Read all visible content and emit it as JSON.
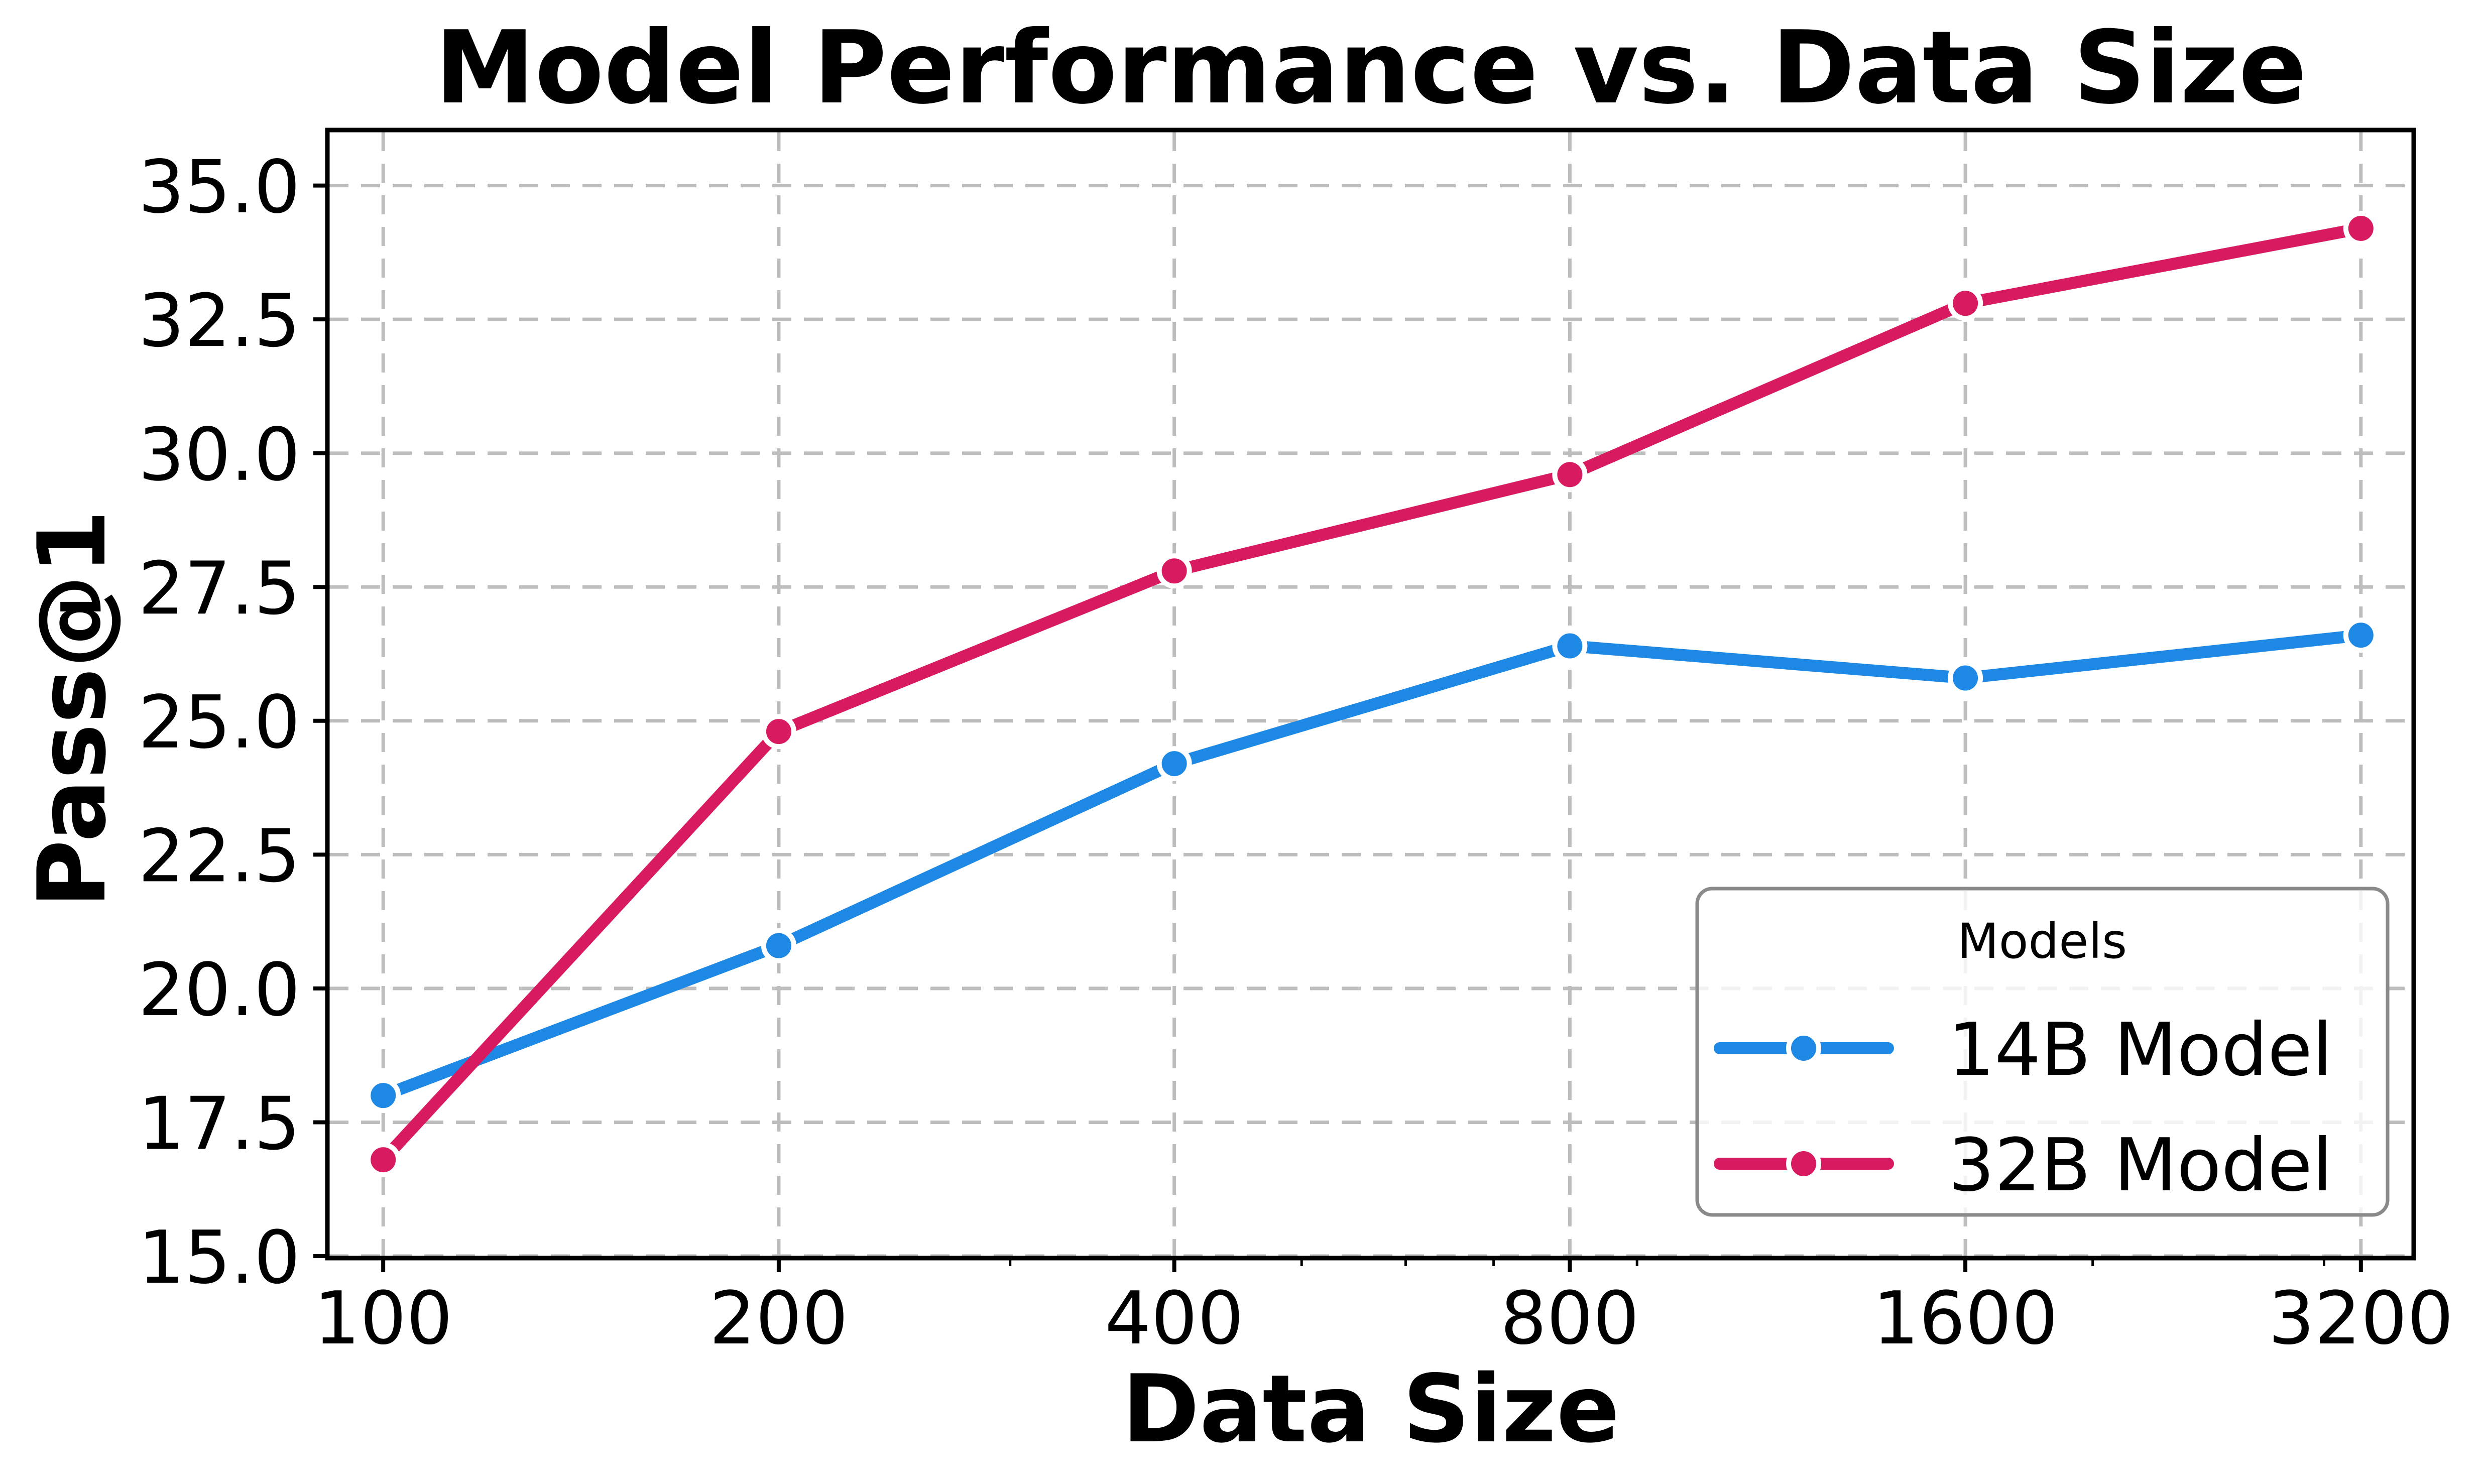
{
  "figure": {
    "background": "#ffffff",
    "text_color": "#000000",
    "grid_color": "#bdbdbd",
    "spine_color": "#000000",
    "legend_border_color": "#8a8a8a",
    "legend_background": "rgba(255,255,255,0.8)"
  },
  "chart_data": {
    "type": "line",
    "title": "Model Performance vs. Data Size",
    "xlabel": "Data Size",
    "ylabel": "Pass@1",
    "x_scale": "log2",
    "x": [
      100,
      200,
      400,
      800,
      1600,
      3200
    ],
    "xtick_labels": [
      "100",
      "200",
      "400",
      "800",
      "1600",
      "3200"
    ],
    "minor_xticks": [
      300,
      500,
      600,
      700,
      900,
      2000,
      3000
    ],
    "xlim": [
      91,
      3498
    ],
    "ylim": [
      15,
      36
    ],
    "yticks": [
      15.0,
      17.5,
      20.0,
      22.5,
      25.0,
      27.5,
      30.0,
      32.5,
      35.0
    ],
    "ytick_labels": [
      "15.0",
      "17.5",
      "20.0",
      "22.5",
      "25.0",
      "27.5",
      "30.0",
      "32.5",
      "35.0"
    ],
    "grid": true,
    "series": [
      {
        "name": "14B Model",
        "color": "#1E88E5",
        "values": [
          18.0,
          20.8,
          24.2,
          26.4,
          25.8,
          26.6
        ]
      },
      {
        "name": "32B Model",
        "color": "#D81B60",
        "values": [
          16.8,
          24.8,
          27.8,
          29.6,
          32.8,
          34.2
        ]
      }
    ],
    "legend": {
      "title": "Models",
      "position": "lower right",
      "entries": [
        "14B Model",
        "32B Model"
      ]
    }
  }
}
